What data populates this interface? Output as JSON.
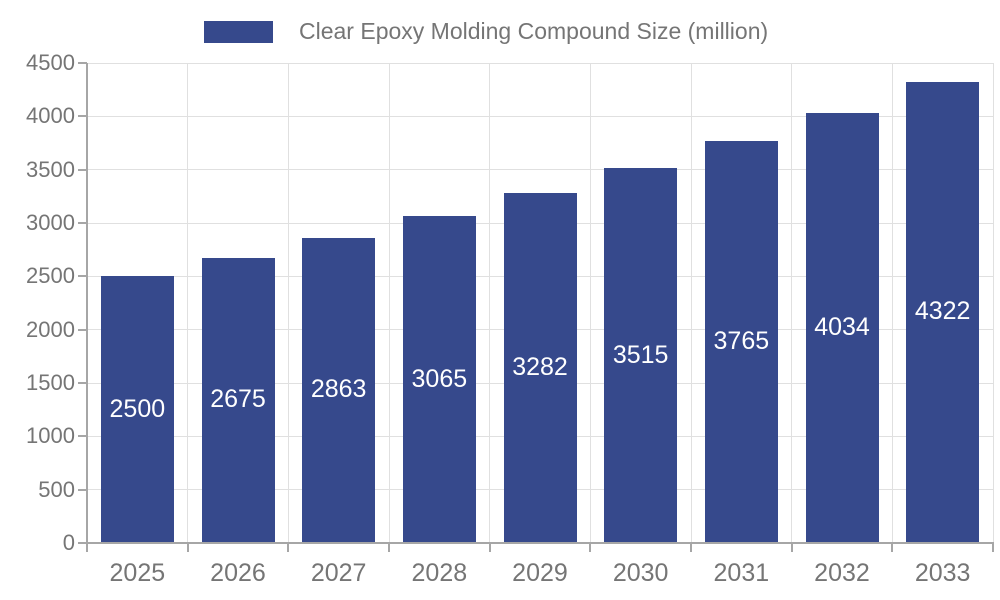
{
  "legend": {
    "label": "Clear Epoxy Molding Compound Size (million)"
  },
  "chart_data": {
    "type": "bar",
    "title": "Clear Epoxy Molding Compound Size (million)",
    "categories": [
      "2025",
      "2026",
      "2027",
      "2028",
      "2029",
      "2030",
      "2031",
      "2032",
      "2033"
    ],
    "values": [
      2500,
      2675,
      2863,
      3065,
      3282,
      3515,
      3765,
      4034,
      4322
    ],
    "xlabel": "",
    "ylabel": "",
    "ylim": [
      0,
      4500
    ],
    "ytick_interval": 500,
    "yticks": [
      0,
      500,
      1000,
      1500,
      2000,
      2500,
      3000,
      3500,
      4000,
      4500
    ],
    "grid": true,
    "legend_position": "top",
    "value_label_position": "inside-center",
    "colors": {
      "bar": "#36498c",
      "value_label_text": "#ffffff",
      "axis_text": "#757575",
      "gridline": "#e0e0e0",
      "axis_line": "#a6a6a6",
      "background": "#ffffff"
    }
  }
}
